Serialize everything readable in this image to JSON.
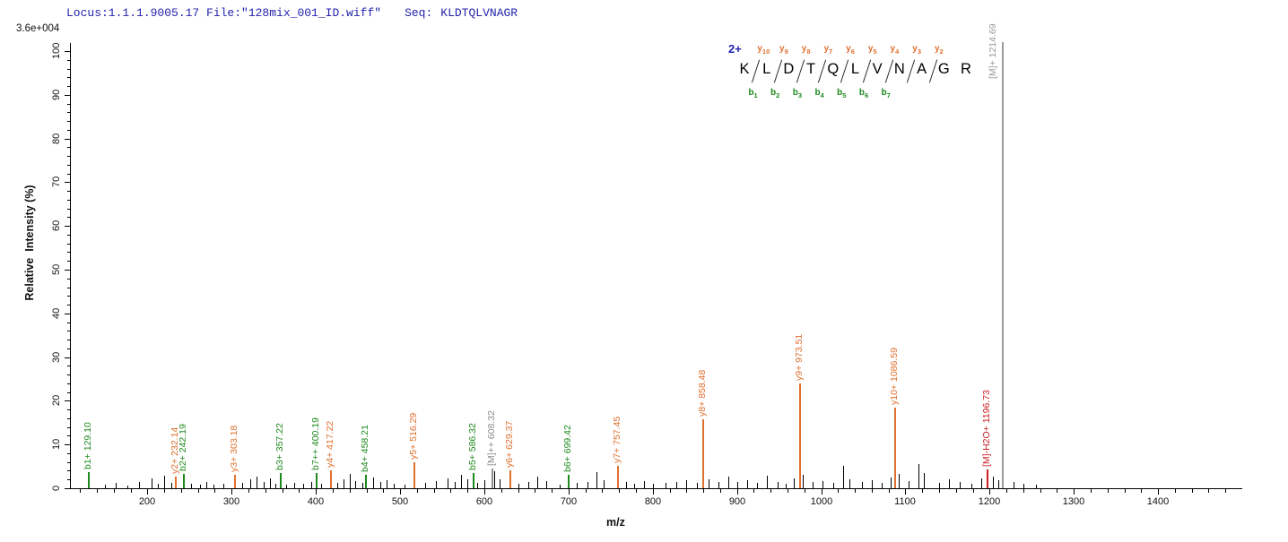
{
  "header": {
    "locus_file": "Locus:1.1.1.9005.17 File:\"128mix_001_ID.wiff\"",
    "seq_label": "Seq:",
    "sequence": "KLDTQLVNAGR",
    "max_intensity": "3.6e+004"
  },
  "annotation": {
    "charge": "2+",
    "residues": [
      "K",
      "L",
      "D",
      "T",
      "Q",
      "L",
      "V",
      "N",
      "A",
      "G",
      "R"
    ],
    "y_ions": [
      {
        "gap": 0,
        "n": 10
      },
      {
        "gap": 1,
        "n": 9
      },
      {
        "gap": 2,
        "n": 8
      },
      {
        "gap": 3,
        "n": 7
      },
      {
        "gap": 4,
        "n": 6
      },
      {
        "gap": 5,
        "n": 5
      },
      {
        "gap": 6,
        "n": 4
      },
      {
        "gap": 7,
        "n": 3
      },
      {
        "gap": 8,
        "n": 2
      }
    ],
    "b_ions": [
      {
        "gap": 0,
        "n": 1
      },
      {
        "gap": 1,
        "n": 2
      },
      {
        "gap": 2,
        "n": 3
      },
      {
        "gap": 3,
        "n": 4
      },
      {
        "gap": 4,
        "n": 5
      },
      {
        "gap": 5,
        "n": 6
      },
      {
        "gap": 6,
        "n": 7
      }
    ]
  },
  "colors": {
    "header_blue": "#2323ae",
    "b_ion": "#1e8a1e",
    "y_ion": "#e0702f",
    "precursor_gray": "#8c8c8c",
    "molecular_gray": "#9a9a9a",
    "loss_red": "#cb2026",
    "noise_black": "#000000"
  },
  "chart_data": {
    "type": "bar",
    "title": "",
    "xlabel": "m/z",
    "ylabel": "Relative  Intensity (%)",
    "xlim": [
      108,
      1500
    ],
    "ylim": [
      0,
      100
    ],
    "x_major_ticks": [
      200,
      300,
      400,
      500,
      600,
      700,
      800,
      900,
      1000,
      1100,
      1200,
      1300,
      1400
    ],
    "x_minor_step": 20,
    "y_major_ticks": [
      0,
      10,
      20,
      30,
      40,
      50,
      60,
      70,
      80,
      90,
      100
    ],
    "y_minor_step": 2,
    "absolute_max_intensity": "3.6e+004",
    "labeled_peaks": [
      {
        "mz": 129.1,
        "intensity": 3.6,
        "label": "b1+ 129.10",
        "ion": "b"
      },
      {
        "mz": 232.14,
        "intensity": 2.6,
        "label": "y2+ 232.14",
        "ion": "y"
      },
      {
        "mz": 242.19,
        "intensity": 3.2,
        "label": "b2+ 242.19",
        "ion": "b"
      },
      {
        "mz": 303.18,
        "intensity": 3.0,
        "label": "y3+ 303.18",
        "ion": "y"
      },
      {
        "mz": 357.22,
        "intensity": 3.4,
        "label": "b3+ 357.22",
        "ion": "b"
      },
      {
        "mz": 400.19,
        "intensity": 3.4,
        "label": "b7++ 400.19",
        "ion": "b"
      },
      {
        "mz": 417.22,
        "intensity": 4.2,
        "label": "y4+ 417.22",
        "ion": "y"
      },
      {
        "mz": 458.21,
        "intensity": 3.0,
        "label": "b4+ 458.21",
        "ion": "b"
      },
      {
        "mz": 516.29,
        "intensity": 6.0,
        "label": "y5+ 516.29",
        "ion": "y"
      },
      {
        "mz": 586.32,
        "intensity": 3.4,
        "label": "b5+ 586.32",
        "ion": "b"
      },
      {
        "mz": 608.32,
        "intensity": 4.6,
        "label": "[M]++ 608.32",
        "ion": "precursor"
      },
      {
        "mz": 629.37,
        "intensity": 4.0,
        "label": "y6+ 629.37",
        "ion": "y"
      },
      {
        "mz": 699.42,
        "intensity": 3.0,
        "label": "b6+ 699.42",
        "ion": "b"
      },
      {
        "mz": 757.45,
        "intensity": 5.2,
        "label": "y7+ 757.45",
        "ion": "y"
      },
      {
        "mz": 858.48,
        "intensity": 15.8,
        "label": "y8+ 858.48",
        "ion": "y"
      },
      {
        "mz": 973.51,
        "intensity": 24.0,
        "label": "y9+ 973.51",
        "ion": "y"
      },
      {
        "mz": 1086.59,
        "intensity": 18.5,
        "label": "y10+ 1086.59",
        "ion": "y"
      },
      {
        "mz": 1196.73,
        "intensity": 4.4,
        "label": "[M]-H2O+ 1196.73",
        "ion": "loss"
      },
      {
        "mz": 1214.69,
        "intensity": 102,
        "label": "[M]+ 1214.69",
        "ion": "molecular"
      }
    ],
    "noise_peaks": [
      [
        150,
        0.8
      ],
      [
        162,
        1.2
      ],
      [
        176,
        0.7
      ],
      [
        190,
        1.5
      ],
      [
        205,
        2.2
      ],
      [
        212,
        1.0
      ],
      [
        220,
        2.8
      ],
      [
        228,
        1.2
      ],
      [
        252,
        1.0
      ],
      [
        262,
        0.8
      ],
      [
        270,
        1.5
      ],
      [
        278,
        0.8
      ],
      [
        290,
        1.0
      ],
      [
        312,
        1.2
      ],
      [
        322,
        2.0
      ],
      [
        330,
        2.6
      ],
      [
        338,
        1.4
      ],
      [
        346,
        2.2
      ],
      [
        352,
        1.0
      ],
      [
        365,
        0.8
      ],
      [
        374,
        1.2
      ],
      [
        385,
        1.0
      ],
      [
        394,
        1.5
      ],
      [
        406,
        1.0
      ],
      [
        425,
        1.2
      ],
      [
        433,
        2.0
      ],
      [
        440,
        3.2
      ],
      [
        447,
        1.6
      ],
      [
        455,
        1.2
      ],
      [
        468,
        2.4
      ],
      [
        476,
        1.4
      ],
      [
        484,
        1.8
      ],
      [
        492,
        1.0
      ],
      [
        505,
        0.8
      ],
      [
        530,
        1.2
      ],
      [
        543,
        1.6
      ],
      [
        556,
        2.2
      ],
      [
        565,
        1.4
      ],
      [
        572,
        3.0
      ],
      [
        580,
        2.0
      ],
      [
        592,
        1.2
      ],
      [
        600,
        1.8
      ],
      [
        612,
        3.8
      ],
      [
        618,
        2.0
      ],
      [
        640,
        1.0
      ],
      [
        652,
        1.4
      ],
      [
        663,
        2.6
      ],
      [
        674,
        1.6
      ],
      [
        690,
        0.8
      ],
      [
        710,
        1.2
      ],
      [
        722,
        1.4
      ],
      [
        733,
        3.6
      ],
      [
        742,
        1.8
      ],
      [
        768,
        1.4
      ],
      [
        778,
        1.0
      ],
      [
        790,
        1.6
      ],
      [
        800,
        1.0
      ],
      [
        815,
        1.2
      ],
      [
        828,
        1.4
      ],
      [
        840,
        1.8
      ],
      [
        852,
        1.2
      ],
      [
        866,
        2.0
      ],
      [
        878,
        1.4
      ],
      [
        890,
        2.6
      ],
      [
        900,
        1.4
      ],
      [
        912,
        1.8
      ],
      [
        924,
        1.2
      ],
      [
        936,
        2.8
      ],
      [
        948,
        1.4
      ],
      [
        958,
        1.0
      ],
      [
        968,
        2.2
      ],
      [
        978,
        3.0
      ],
      [
        990,
        1.4
      ],
      [
        1002,
        1.6
      ],
      [
        1014,
        1.2
      ],
      [
        1026,
        5.2
      ],
      [
        1034,
        2.0
      ],
      [
        1048,
        1.4
      ],
      [
        1060,
        1.8
      ],
      [
        1072,
        1.2
      ],
      [
        1082,
        2.4
      ],
      [
        1092,
        3.2
      ],
      [
        1104,
        1.6
      ],
      [
        1116,
        5.5
      ],
      [
        1122,
        3.4
      ],
      [
        1140,
        1.2
      ],
      [
        1152,
        2.0
      ],
      [
        1164,
        1.4
      ],
      [
        1178,
        1.0
      ],
      [
        1190,
        2.2
      ],
      [
        1198,
        4.0
      ],
      [
        1204,
        2.6
      ],
      [
        1210,
        1.8
      ],
      [
        1228,
        1.4
      ],
      [
        1240,
        1.0
      ],
      [
        1255,
        0.8
      ]
    ]
  }
}
